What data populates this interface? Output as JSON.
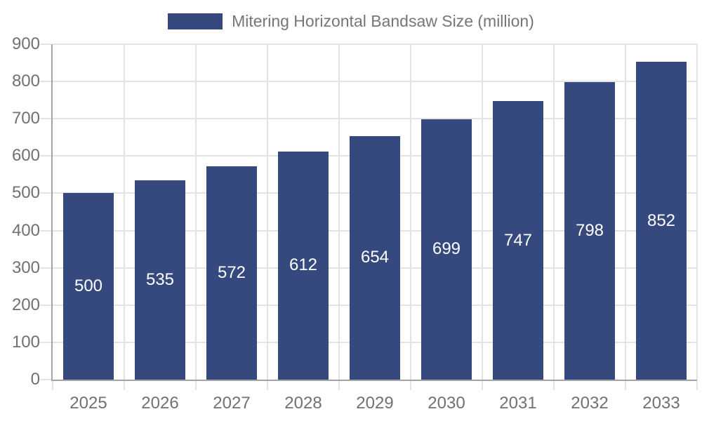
{
  "chart_data": {
    "type": "bar",
    "title": "Mitering Horizontal Bandsaw Size (million)",
    "legend_label": "Mitering Horizontal Bandsaw Size (million)",
    "legend_position": "top-center",
    "categories": [
      "2025",
      "2026",
      "2027",
      "2028",
      "2029",
      "2030",
      "2031",
      "2032",
      "2033"
    ],
    "values": [
      500,
      535,
      572,
      612,
      654,
      699,
      747,
      798,
      852
    ],
    "bar_value_labels": [
      "500",
      "535",
      "572",
      "612",
      "654",
      "699",
      "747",
      "798",
      "852"
    ],
    "xlabel": "",
    "ylabel": "",
    "ylim": [
      0,
      900
    ],
    "yticks": [
      0,
      100,
      200,
      300,
      400,
      500,
      600,
      700,
      800,
      900
    ],
    "grid": true
  },
  "colors": {
    "bar": "#36497f",
    "bar_label": "#ffffff",
    "grid_line": "#e3e3e3",
    "axis_line": "#a5a5a5",
    "tick_label": "#717171",
    "legend_text": "#767676",
    "background": "#ffffff"
  }
}
